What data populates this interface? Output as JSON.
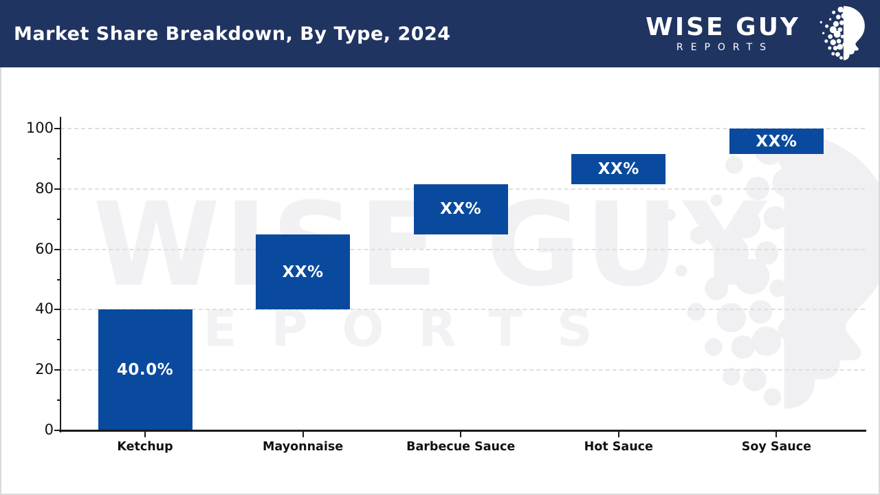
{
  "header": {
    "title": "Market Share Breakdown, By Type, 2024",
    "bg_color": "#203461",
    "brand": {
      "line1": "WISE GUY",
      "line2": "REPORTS"
    }
  },
  "watermark": {
    "line1": "WISE GUY",
    "line2": "REPORTS"
  },
  "chart_data": {
    "type": "bar",
    "subtype": "floating-segment-waterfall",
    "title": "Market Share Breakdown, By Type, 2024",
    "categories": [
      "Ketchup",
      "Mayonnaise",
      "Barbecue Sauce",
      "Hot Sauce",
      "Soy Sauce"
    ],
    "segments": [
      {
        "category": "Ketchup",
        "start": 0,
        "end": 40,
        "label": "40.0%"
      },
      {
        "category": "Mayonnaise",
        "start": 40,
        "end": 65,
        "label": "XX%"
      },
      {
        "category": "Barbecue Sauce",
        "start": 65,
        "end": 81.5,
        "label": "XX%"
      },
      {
        "category": "Hot Sauce",
        "start": 81.5,
        "end": 91.5,
        "label": "XX%"
      },
      {
        "category": "Soy Sauce",
        "start": 91.5,
        "end": 100,
        "label": "XX%"
      }
    ],
    "xlabel": "",
    "ylabel": "",
    "ylim": [
      0,
      100
    ],
    "yticks": [
      0,
      20,
      40,
      60,
      80,
      100
    ],
    "minor_yticks": [
      10,
      30,
      50,
      70,
      90
    ],
    "grid": "horizontal dashed",
    "legend": "none",
    "bar_color": "#0a4a9e",
    "bar_label_color": "#ffffff",
    "axis_color": "#1a1a1a"
  }
}
